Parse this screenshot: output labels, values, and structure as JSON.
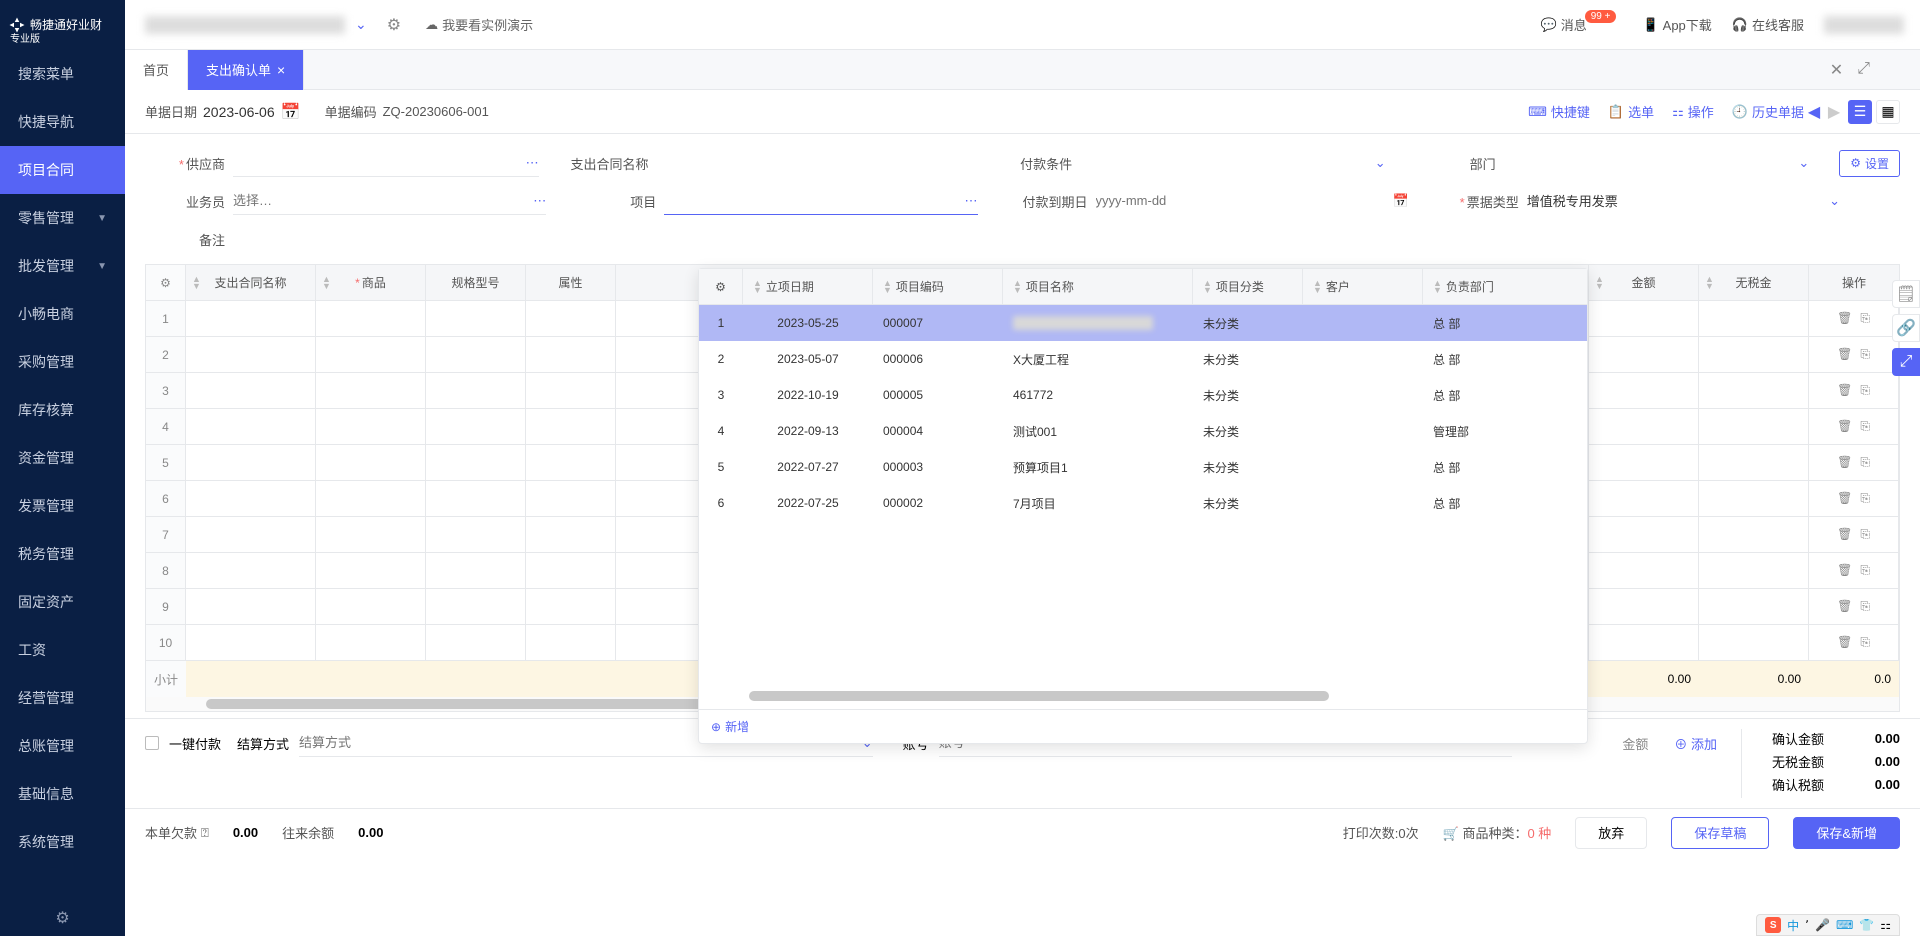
{
  "header": {
    "logo_text": "畅捷通好业财",
    "logo_sub": "专业版",
    "demo_link": "我要看实例演示",
    "messages": "消息",
    "badge": "99 +",
    "app_download": "App下载",
    "online_service": "在线客服"
  },
  "sidebar": {
    "items": [
      {
        "label": "搜索菜单",
        "caret": false,
        "active": false
      },
      {
        "label": "快捷导航",
        "caret": false,
        "active": false
      },
      {
        "label": "项目合同",
        "caret": false,
        "active": true
      },
      {
        "label": "零售管理",
        "caret": true,
        "active": false
      },
      {
        "label": "批发管理",
        "caret": true,
        "active": false
      },
      {
        "label": "小畅电商",
        "caret": false,
        "active": false
      },
      {
        "label": "采购管理",
        "caret": false,
        "active": false
      },
      {
        "label": "库存核算",
        "caret": false,
        "active": false
      },
      {
        "label": "资金管理",
        "caret": false,
        "active": false
      },
      {
        "label": "发票管理",
        "caret": false,
        "active": false
      },
      {
        "label": "税务管理",
        "caret": false,
        "active": false
      },
      {
        "label": "固定资产",
        "caret": false,
        "active": false
      },
      {
        "label": "工资",
        "caret": false,
        "active": false
      },
      {
        "label": "经营管理",
        "caret": false,
        "active": false
      },
      {
        "label": "总账管理",
        "caret": false,
        "active": false
      },
      {
        "label": "基础信息",
        "caret": false,
        "active": false
      },
      {
        "label": "系统管理",
        "caret": false,
        "active": false
      }
    ]
  },
  "tabs": {
    "home": "首页",
    "active": "支出确认单"
  },
  "toolbar": {
    "date_label": "单据日期",
    "date_value": "2023-06-06",
    "code_label": "单据编码",
    "code_value": "ZQ-20230606-001",
    "shortcut": "快捷键",
    "select_doc": "选单",
    "operate": "操作",
    "history": "历史单据"
  },
  "form": {
    "supplier": "供应商",
    "contract_name": "支出合同名称",
    "pay_terms": "付款条件",
    "department": "部门",
    "setting_btn": "设置",
    "operator": "业务员",
    "operator_ph": "选择…",
    "project": "项目",
    "due_date": "付款到期日",
    "due_date_ph": "yyyy-mm-dd",
    "invoice_type": "票据类型",
    "invoice_type_val": "增值税专用发票",
    "remark": "备注"
  },
  "table": {
    "cols": {
      "contract": "支出合同名称",
      "product": "商品",
      "spec": "规格型号",
      "attr": "属性",
      "amount": "金额",
      "notax": "无税金",
      "op": "操作"
    },
    "subtotal": "小计",
    "subtotal_vals": [
      "0.00",
      "0.00",
      "0.0"
    ]
  },
  "popup": {
    "cols": {
      "date": "立项日期",
      "code": "项目编码",
      "name": "项目名称",
      "category": "项目分类",
      "customer": "客户",
      "dept": "负责部门"
    },
    "rows": [
      {
        "n": "1",
        "date": "2023-05-25",
        "code": "000007",
        "name": "",
        "blur": true,
        "cat": "未分类",
        "dept": "总 部"
      },
      {
        "n": "2",
        "date": "2023-05-07",
        "code": "000006",
        "name": "X大厦工程",
        "blur": false,
        "cat": "未分类",
        "dept": "总 部"
      },
      {
        "n": "3",
        "date": "2022-10-19",
        "code": "000005",
        "name": "461772",
        "blur": false,
        "cat": "未分类",
        "dept": "总 部"
      },
      {
        "n": "4",
        "date": "2022-09-13",
        "code": "000004",
        "name": "测试001",
        "blur": false,
        "cat": "未分类",
        "dept": "管理部"
      },
      {
        "n": "5",
        "date": "2022-07-27",
        "code": "000003",
        "name": "预算项目1",
        "blur": false,
        "cat": "未分类",
        "dept": "总 部"
      },
      {
        "n": "6",
        "date": "2022-07-25",
        "code": "000002",
        "name": "7月项目",
        "blur": false,
        "cat": "未分类",
        "dept": "总 部"
      }
    ],
    "add": "新增"
  },
  "footer_form": {
    "one_key_pay": "一键付款",
    "settle_method": "结算方式",
    "settle_method_ph": "结算方式",
    "account": "账号",
    "account_ph": "账号",
    "amount": "金额",
    "add": "添加"
  },
  "totals": {
    "confirm_amount_label": "确认金额",
    "confirm_amount": "0.00",
    "notax_label": "无税金额",
    "notax": "0.00",
    "confirm_tax_label": "确认税额",
    "confirm_tax": "0.00"
  },
  "bottom": {
    "this_owe": "本单欠款",
    "this_owe_val": "0.00",
    "balance": "往来余额",
    "balance_val": "0.00",
    "print_times": "打印次数:0次",
    "prod_kind": "商品种类：",
    "prod_kind_val": "0 种",
    "discard": "放弃",
    "save_draft": "保存草稿",
    "save_new": "保存&新增"
  },
  "colors": {
    "primary": "#5664f5",
    "sidebar_bg": "#0a1f44",
    "red": "#f56c6c",
    "subtotal_bg": "#fdf6e3",
    "popup_selected": "#b0b8f5"
  }
}
